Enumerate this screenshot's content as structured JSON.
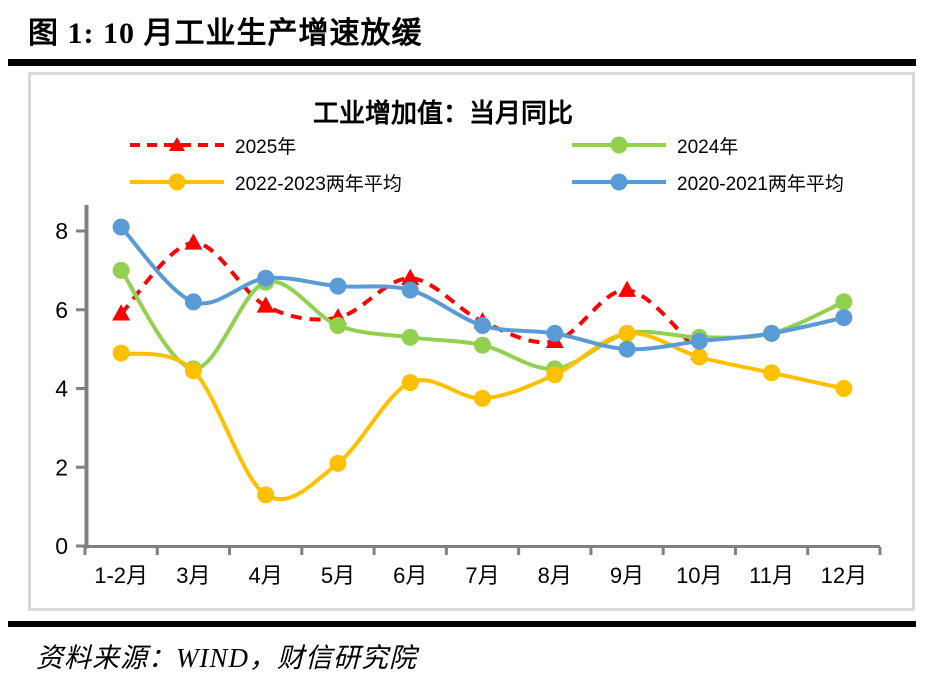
{
  "page": {
    "title": "图 1: 10 月工业生产增速放缓",
    "source_note": "资料来源：WIND，财信研究院"
  },
  "chart_data": {
    "type": "line",
    "title": "工业增加值：当月同比",
    "categories": [
      "1-2月",
      "3月",
      "4月",
      "5月",
      "6月",
      "7月",
      "8月",
      "9月",
      "10月",
      "11月",
      "12月"
    ],
    "series": [
      {
        "name": "2025年",
        "color": "#FF0000",
        "line_style": "dashed",
        "marker": "triangle",
        "values": [
          5.9,
          7.7,
          6.1,
          5.8,
          6.8,
          5.7,
          5.2,
          6.5,
          4.9,
          null,
          null
        ]
      },
      {
        "name": "2024年",
        "color": "#92D050",
        "line_style": "solid",
        "marker": "circle",
        "values": [
          7.0,
          4.5,
          6.7,
          5.6,
          5.3,
          5.1,
          4.5,
          5.4,
          5.3,
          5.4,
          6.2
        ]
      },
      {
        "name": "2022-2023两年平均",
        "color": "#FFC000",
        "line_style": "solid",
        "marker": "circle",
        "values": [
          4.9,
          4.45,
          1.3,
          2.1,
          4.15,
          3.75,
          4.35,
          5.4,
          4.8,
          4.4,
          4.0
        ]
      },
      {
        "name": "2020-2021两年平均",
        "color": "#5B9BD5",
        "line_style": "solid",
        "marker": "circle",
        "values": [
          8.1,
          6.2,
          6.8,
          6.6,
          6.5,
          5.6,
          5.4,
          5.0,
          5.2,
          5.4,
          5.8
        ]
      }
    ],
    "y_ticks": [
      0,
      2,
      4,
      6,
      8
    ],
    "ylim": [
      0,
      8.65
    ],
    "xlabel": "",
    "ylabel": "",
    "grid": false,
    "smoothed": true,
    "legend_position": "top-two-columns",
    "style": {
      "axis_color": "#808080",
      "border_color": "#D9D9D9",
      "label_color": "#000000"
    }
  }
}
